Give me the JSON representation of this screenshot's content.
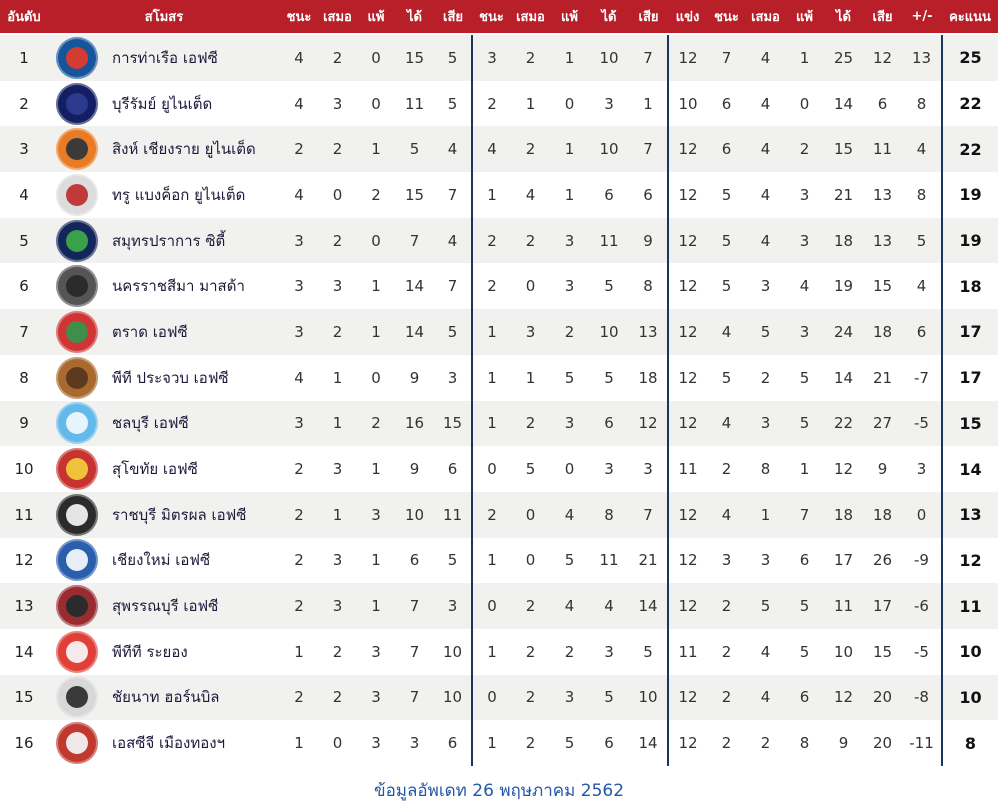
{
  "colors": {
    "header_bg": "#b91f29",
    "header_text": "#ffffff",
    "group_separator": "#17375e",
    "row_alt_bg": "#f1f1ef",
    "footer_text": "#2457a7"
  },
  "table": {
    "headers": {
      "rank": "อันดับ",
      "club": "สโมสร",
      "home": [
        "ชนะ",
        "เสมอ",
        "แพ้",
        "ได้",
        "เสีย"
      ],
      "away": [
        "ชนะ",
        "เสมอ",
        "แพ้",
        "ได้",
        "เสีย"
      ],
      "total": [
        "แข่ง",
        "ชนะ",
        "เสมอ",
        "แพ้",
        "ได้",
        "เสีย",
        "+/-"
      ],
      "points": "คะแนน"
    },
    "rows": [
      {
        "rank": "1",
        "club": "การท่าเรือ เอฟซี",
        "logo_colors": [
          "#16559c",
          "#d23c32"
        ],
        "home": [
          "4",
          "2",
          "0",
          "15",
          "5"
        ],
        "away": [
          "3",
          "2",
          "1",
          "10",
          "7"
        ],
        "total": [
          "12",
          "7",
          "4",
          "1",
          "25",
          "12",
          "13"
        ],
        "points": "25"
      },
      {
        "rank": "2",
        "club": "บุรีรัมย์ ยูไนเต็ด",
        "logo_colors": [
          "#141f63",
          "#2b3a8f"
        ],
        "home": [
          "4",
          "3",
          "0",
          "11",
          "5"
        ],
        "away": [
          "2",
          "1",
          "0",
          "3",
          "1"
        ],
        "total": [
          "10",
          "6",
          "4",
          "0",
          "14",
          "6",
          "8"
        ],
        "points": "22"
      },
      {
        "rank": "3",
        "club": "สิงห์ เชียงราย ยูไนเต็ด",
        "logo_colors": [
          "#e87b24",
          "#3a3a3a"
        ],
        "home": [
          "2",
          "2",
          "1",
          "5",
          "4"
        ],
        "away": [
          "4",
          "2",
          "1",
          "10",
          "7"
        ],
        "total": [
          "12",
          "6",
          "4",
          "2",
          "15",
          "11",
          "4"
        ],
        "points": "22"
      },
      {
        "rank": "4",
        "club": "ทรู แบงค็อก ยูไนเต็ด",
        "logo_colors": [
          "#dcdcdc",
          "#c03a3a"
        ],
        "home": [
          "4",
          "0",
          "2",
          "15",
          "7"
        ],
        "away": [
          "1",
          "4",
          "1",
          "6",
          "6"
        ],
        "total": [
          "12",
          "5",
          "4",
          "3",
          "21",
          "13",
          "8"
        ],
        "points": "19"
      },
      {
        "rank": "5",
        "club": "สมุทรปราการ ซิตี้",
        "logo_colors": [
          "#13265c",
          "#3aa04a"
        ],
        "home": [
          "3",
          "2",
          "0",
          "7",
          "4"
        ],
        "away": [
          "2",
          "2",
          "3",
          "11",
          "9"
        ],
        "total": [
          "12",
          "5",
          "4",
          "3",
          "18",
          "13",
          "5"
        ],
        "points": "19"
      },
      {
        "rank": "6",
        "club": "นครราชสีมา มาสด้า",
        "logo_colors": [
          "#555555",
          "#2b2b2b"
        ],
        "home": [
          "3",
          "3",
          "1",
          "14",
          "7"
        ],
        "away": [
          "2",
          "0",
          "3",
          "5",
          "8"
        ],
        "total": [
          "12",
          "5",
          "3",
          "4",
          "19",
          "15",
          "4"
        ],
        "points": "18"
      },
      {
        "rank": "7",
        "club": "ตราด เอฟซี",
        "logo_colors": [
          "#d03434",
          "#3f8f4a"
        ],
        "home": [
          "3",
          "2",
          "1",
          "14",
          "5"
        ],
        "away": [
          "1",
          "3",
          "2",
          "10",
          "13"
        ],
        "total": [
          "12",
          "4",
          "5",
          "3",
          "24",
          "18",
          "6"
        ],
        "points": "17"
      },
      {
        "rank": "8",
        "club": "พีที ประจวบ เอฟซี",
        "logo_colors": [
          "#a86a2e",
          "#5d3a1e"
        ],
        "home": [
          "4",
          "1",
          "0",
          "9",
          "3"
        ],
        "away": [
          "1",
          "1",
          "5",
          "5",
          "18"
        ],
        "total": [
          "12",
          "5",
          "2",
          "5",
          "14",
          "21",
          "-7"
        ],
        "points": "17"
      },
      {
        "rank": "9",
        "club": "ชลบุรี เอฟซี",
        "logo_colors": [
          "#63b9e9",
          "#e8f4fb"
        ],
        "home": [
          "3",
          "1",
          "2",
          "16",
          "15"
        ],
        "away": [
          "1",
          "2",
          "3",
          "6",
          "12"
        ],
        "total": [
          "12",
          "4",
          "3",
          "5",
          "22",
          "27",
          "-5"
        ],
        "points": "15"
      },
      {
        "rank": "10",
        "club": "สุโขทัย เอฟซี",
        "logo_colors": [
          "#c73430",
          "#f0c23c"
        ],
        "home": [
          "2",
          "3",
          "1",
          "9",
          "6"
        ],
        "away": [
          "0",
          "5",
          "0",
          "3",
          "3"
        ],
        "total": [
          "11",
          "2",
          "8",
          "1",
          "12",
          "9",
          "3"
        ],
        "points": "14"
      },
      {
        "rank": "11",
        "club": "ราชบุรี มิตรผล เอฟซี",
        "logo_colors": [
          "#2b2b2b",
          "#e5e5e5"
        ],
        "home": [
          "2",
          "1",
          "3",
          "10",
          "11"
        ],
        "away": [
          "2",
          "0",
          "4",
          "8",
          "7"
        ],
        "total": [
          "12",
          "4",
          "1",
          "7",
          "18",
          "18",
          "0"
        ],
        "points": "13"
      },
      {
        "rank": "12",
        "club": "เชียงใหม่ เอฟซี",
        "logo_colors": [
          "#2b5fae",
          "#e8eef8"
        ],
        "home": [
          "2",
          "3",
          "1",
          "6",
          "5"
        ],
        "away": [
          "1",
          "0",
          "5",
          "11",
          "21"
        ],
        "total": [
          "12",
          "3",
          "3",
          "6",
          "17",
          "26",
          "-9"
        ],
        "points": "12"
      },
      {
        "rank": "13",
        "club": "สุพรรณบุรี เอฟซี",
        "logo_colors": [
          "#992c30",
          "#2b2b2b"
        ],
        "home": [
          "2",
          "3",
          "1",
          "7",
          "3"
        ],
        "away": [
          "0",
          "2",
          "4",
          "4",
          "14"
        ],
        "total": [
          "12",
          "2",
          "5",
          "5",
          "11",
          "17",
          "-6"
        ],
        "points": "11"
      },
      {
        "rank": "14",
        "club": "พีทีที ระยอง",
        "logo_colors": [
          "#e04038",
          "#f5e9e9"
        ],
        "home": [
          "1",
          "2",
          "3",
          "7",
          "10"
        ],
        "away": [
          "1",
          "2",
          "2",
          "3",
          "5"
        ],
        "total": [
          "11",
          "2",
          "4",
          "5",
          "10",
          "15",
          "-5"
        ],
        "points": "10"
      },
      {
        "rank": "15",
        "club": "ชัยนาท ฮอร์นบิล",
        "logo_colors": [
          "#d8d8d8",
          "#3a3a3a"
        ],
        "home": [
          "2",
          "2",
          "3",
          "7",
          "10"
        ],
        "away": [
          "0",
          "2",
          "3",
          "5",
          "10"
        ],
        "total": [
          "12",
          "2",
          "4",
          "6",
          "12",
          "20",
          "-8"
        ],
        "points": "10"
      },
      {
        "rank": "16",
        "club": "เอสซีจี เมืองทองฯ",
        "logo_colors": [
          "#c0392f",
          "#f0e8e8"
        ],
        "home": [
          "1",
          "0",
          "3",
          "3",
          "6"
        ],
        "away": [
          "1",
          "2",
          "5",
          "6",
          "14"
        ],
        "total": [
          "12",
          "2",
          "2",
          "8",
          "9",
          "20",
          "-11"
        ],
        "points": "8"
      }
    ]
  },
  "footer": {
    "updated": "ข้อมูลอัพเดท 26 พฤษภาคม 2562"
  }
}
